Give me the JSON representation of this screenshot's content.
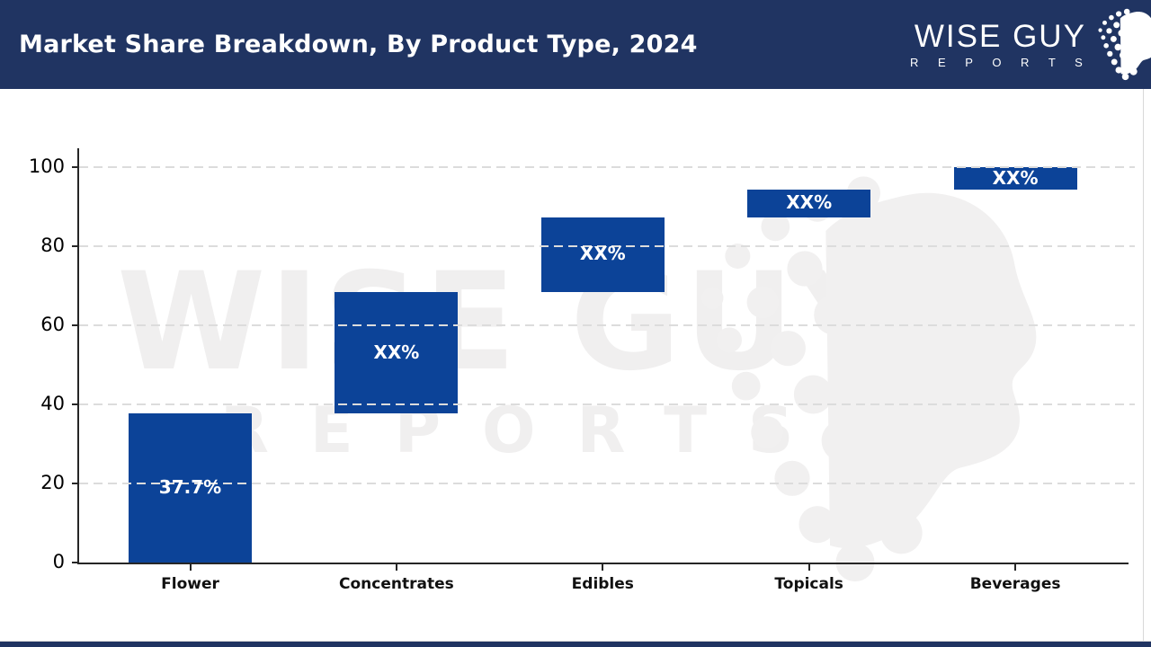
{
  "header": {
    "title": "Market Share Breakdown, By Product Type, 2024",
    "logo": {
      "line1": "WISE GUY",
      "line2": "R E P O R T S",
      "icon": "dotted-face-profile"
    }
  },
  "watermark": {
    "line1": "WISE GUY",
    "line2": "REPORTS",
    "icon": "dotted-face-profile"
  },
  "colors": {
    "header_bg": "#203462",
    "footer_bg": "#203462",
    "bar_fill": "#0c4398",
    "bar_label_text": "#ffffff",
    "axis": "#262626",
    "gridline": "#dcdcdc",
    "watermark": "#f0efef",
    "tick_text": "#000000"
  },
  "chart_data": {
    "type": "bar",
    "subtype": "waterfall",
    "title": "Market Share Breakdown, By Product Type, 2024",
    "xlabel": "",
    "ylabel": "",
    "categories": [
      "Flower",
      "Concentrates",
      "Edibles",
      "Topicals",
      "Beverages"
    ],
    "segments": [
      {
        "category": "Flower",
        "start": 0,
        "end": 37.7,
        "label": "37.7%"
      },
      {
        "category": "Concentrates",
        "start": 37.7,
        "end": 68.4,
        "label": "XX%"
      },
      {
        "category": "Edibles",
        "start": 68.4,
        "end": 87.3,
        "label": "XX%"
      },
      {
        "category": "Topicals",
        "start": 87.3,
        "end": 94.3,
        "label": "XX%"
      },
      {
        "category": "Beverages",
        "start": 94.3,
        "end": 100,
        "label": "XX%"
      }
    ],
    "values_estimated": [
      37.7,
      30.7,
      18.9,
      7.0,
      5.7
    ],
    "yticks": [
      0,
      20,
      40,
      60,
      80,
      100
    ],
    "ylim": [
      0,
      105
    ],
    "grid": "horizontal dashed, drawn over bars",
    "legend": "none"
  }
}
